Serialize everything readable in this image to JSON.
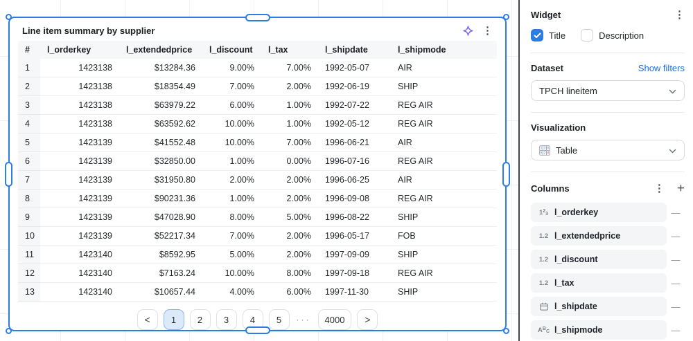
{
  "widget": {
    "title": "Line item summary by supplier",
    "header_icons": {
      "sparkle": "ai-sparkle-icon",
      "menu": "kebab-menu-icon"
    },
    "table": {
      "columns": [
        {
          "label": "#",
          "align": "left"
        },
        {
          "label": "l_orderkey",
          "align": "right"
        },
        {
          "label": "l_extendedprice",
          "align": "right"
        },
        {
          "label": "l_discount",
          "align": "right"
        },
        {
          "label": "l_tax",
          "align": "right"
        },
        {
          "label": "l_shipdate",
          "align": "left"
        },
        {
          "label": "l_shipmode",
          "align": "left"
        }
      ],
      "rows": [
        [
          "1",
          "1423138",
          "$13284.36",
          "9.00%",
          "7.00%",
          "1992-05-07",
          "AIR"
        ],
        [
          "2",
          "1423138",
          "$18354.49",
          "7.00%",
          "2.00%",
          "1992-06-19",
          "SHIP"
        ],
        [
          "3",
          "1423138",
          "$63979.22",
          "6.00%",
          "1.00%",
          "1992-07-22",
          "REG AIR"
        ],
        [
          "4",
          "1423138",
          "$63592.62",
          "10.00%",
          "1.00%",
          "1992-05-12",
          "REG AIR"
        ],
        [
          "5",
          "1423139",
          "$41552.48",
          "10.00%",
          "7.00%",
          "1996-06-21",
          "AIR"
        ],
        [
          "6",
          "1423139",
          "$32850.00",
          "1.00%",
          "0.00%",
          "1996-07-16",
          "REG AIR"
        ],
        [
          "7",
          "1423139",
          "$31950.80",
          "2.00%",
          "2.00%",
          "1996-06-25",
          "AIR"
        ],
        [
          "8",
          "1423139",
          "$90231.36",
          "1.00%",
          "2.00%",
          "1996-09-08",
          "REG AIR"
        ],
        [
          "9",
          "1423139",
          "$47028.90",
          "8.00%",
          "5.00%",
          "1996-08-22",
          "SHIP"
        ],
        [
          "10",
          "1423139",
          "$52217.34",
          "7.00%",
          "2.00%",
          "1996-05-17",
          "FOB"
        ],
        [
          "11",
          "1423140",
          "$8592.95",
          "5.00%",
          "2.00%",
          "1997-09-09",
          "SHIP"
        ],
        [
          "12",
          "1423140",
          "$7163.24",
          "10.00%",
          "8.00%",
          "1997-09-18",
          "REG AIR"
        ],
        [
          "13",
          "1423140",
          "$10657.44",
          "4.00%",
          "6.00%",
          "1997-11-30",
          "SHIP"
        ]
      ]
    },
    "pagination": {
      "items": [
        {
          "type": "prev",
          "label": "<"
        },
        {
          "type": "page",
          "label": "1",
          "active": true
        },
        {
          "type": "page",
          "label": "2"
        },
        {
          "type": "page",
          "label": "3"
        },
        {
          "type": "page",
          "label": "4"
        },
        {
          "type": "page",
          "label": "5"
        },
        {
          "type": "ellipsis",
          "label": "···"
        },
        {
          "type": "page",
          "label": "4000"
        },
        {
          "type": "next",
          "label": ">"
        }
      ]
    }
  },
  "sidebar": {
    "widget_section": {
      "title": "Widget",
      "menu_icon": "kebab-menu-icon",
      "checkboxes": [
        {
          "label": "Title",
          "checked": true
        },
        {
          "label": "Description",
          "checked": false
        }
      ]
    },
    "dataset_section": {
      "title": "Dataset",
      "link": "Show filters",
      "selected": "TPCH lineitem"
    },
    "visualization_section": {
      "title": "Visualization",
      "selected": "Table",
      "icon_digits": [
        "1",
        "3",
        "6",
        "5",
        "2",
        "8"
      ]
    },
    "columns_section": {
      "title": "Columns",
      "menu_icon": "kebab-menu-icon",
      "add_icon": "plus-icon",
      "items": [
        {
          "type": "integer",
          "label": "l_orderkey"
        },
        {
          "type": "decimal",
          "label": "l_extendedprice"
        },
        {
          "type": "decimal",
          "label": "l_discount"
        },
        {
          "type": "decimal",
          "label": "l_tax"
        },
        {
          "type": "date",
          "label": "l_shipdate"
        },
        {
          "type": "string",
          "label": "l_shipmode"
        }
      ]
    }
  },
  "colors": {
    "accent": "#2e7de5",
    "link": "#1a6ce0",
    "sparkle_blue": "#7a6cf6",
    "sparkle_pink": "#f0447e",
    "table_header_bg": "#f6f7f8",
    "active_page_bg": "#dbe9f9"
  }
}
